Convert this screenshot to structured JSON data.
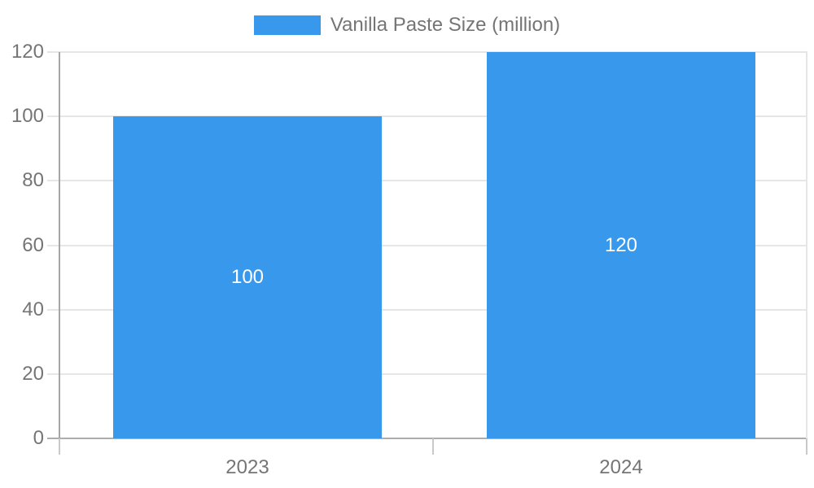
{
  "legend": {
    "label": "Vanilla Paste Size (million)"
  },
  "colors": {
    "bar": "#3898ec",
    "grid": "#e6e6e6",
    "axis": "#a6a6a6",
    "baseline": "#adadad",
    "boundary_tick": "#c9c9c9",
    "tick_text": "#757575",
    "value_label_text": "#ffffff"
  },
  "chart_data": {
    "type": "bar",
    "title": "",
    "categories": [
      "2023",
      "2024"
    ],
    "series": [
      {
        "name": "Vanilla Paste Size (million)",
        "values": [
          100,
          120
        ]
      }
    ],
    "value_labels": [
      "100",
      "120"
    ],
    "xlabel": "",
    "ylabel": "",
    "ylim": [
      0,
      120
    ],
    "yticks": [
      0,
      20,
      40,
      60,
      80,
      100,
      120
    ],
    "grid": true,
    "legend_position": "top-center",
    "bar_label_position": "inside-center"
  }
}
